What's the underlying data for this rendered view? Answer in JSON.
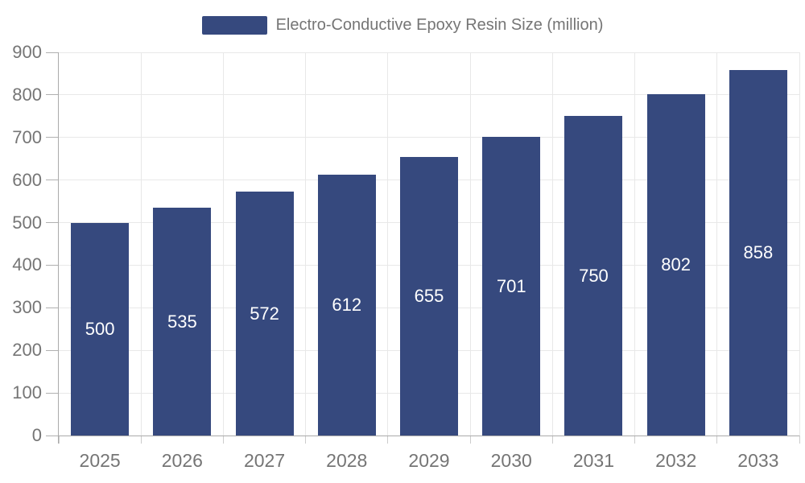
{
  "chart_data": {
    "type": "bar",
    "title": "",
    "legend": "Electro-Conductive Epoxy Resin Size (million)",
    "legend_position": "top",
    "categories": [
      "2025",
      "2026",
      "2027",
      "2028",
      "2029",
      "2030",
      "2031",
      "2032",
      "2033"
    ],
    "series": [
      {
        "name": "Electro-Conductive Epoxy Resin Size (million)",
        "values": [
          500,
          535,
          572,
          612,
          655,
          701,
          750,
          802,
          858
        ]
      }
    ],
    "xlabel": "",
    "ylabel": "",
    "ylim": [
      0,
      900
    ],
    "yticks": [
      0,
      100,
      200,
      300,
      400,
      500,
      600,
      700,
      800,
      900
    ],
    "grid": true,
    "bar_color": "#36497E",
    "bar_label_color": "#ffffff",
    "axis_text_color": "#757575",
    "axis_line_color": "#aaaaaa",
    "gridline_color": "#e8e8e8"
  }
}
